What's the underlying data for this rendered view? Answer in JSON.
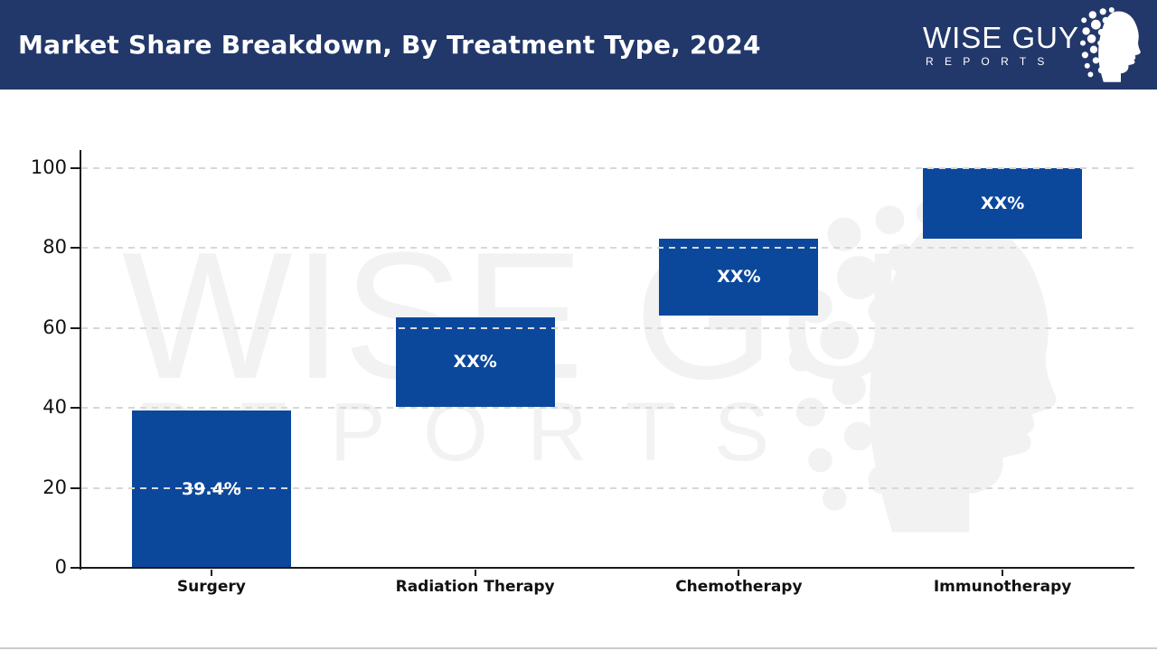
{
  "header": {
    "title": "Market Share Breakdown, By Treatment Type, 2024",
    "logo": {
      "line1": "WISE GUY",
      "line2": "R E P O R T S"
    }
  },
  "watermark": {
    "line1": "WISE GUY",
    "line2": "R E P O R T S"
  },
  "colors": {
    "header_bg": "#22386A",
    "bar": "#0B489C",
    "grid": "#D8D8D8",
    "axis": "#1A1A1A",
    "watermark": "#F2F2F2",
    "bar_label_text": "#FFFFFF",
    "tick_text": "#111111",
    "bottom_rule": "#CCCCCC"
  },
  "chart_data": {
    "type": "bar",
    "subtype": "waterfall-floating-bars",
    "title": "Market Share Breakdown, By Treatment Type, 2024",
    "categories": [
      "Surgery",
      "Radiation Therapy",
      "Chemotherapy",
      "Immunotherapy"
    ],
    "segments": [
      {
        "category": "Surgery",
        "start": 0,
        "end": 39.4,
        "label": "39.4%"
      },
      {
        "category": "Radiation Therapy",
        "start": 40.3,
        "end": 62.7,
        "label": "XX%"
      },
      {
        "category": "Chemotherapy",
        "start": 63.2,
        "end": 82.4,
        "label": "XX%"
      },
      {
        "category": "Immunotherapy",
        "start": 82.4,
        "end": 100,
        "label": "XX%"
      }
    ],
    "xlabel": "",
    "ylabel": "",
    "ylim": [
      0,
      100
    ],
    "yticks": [
      0,
      20,
      40,
      60,
      80,
      100
    ],
    "grid": "horizontal dashed, drawn above bars",
    "legend": "none"
  }
}
